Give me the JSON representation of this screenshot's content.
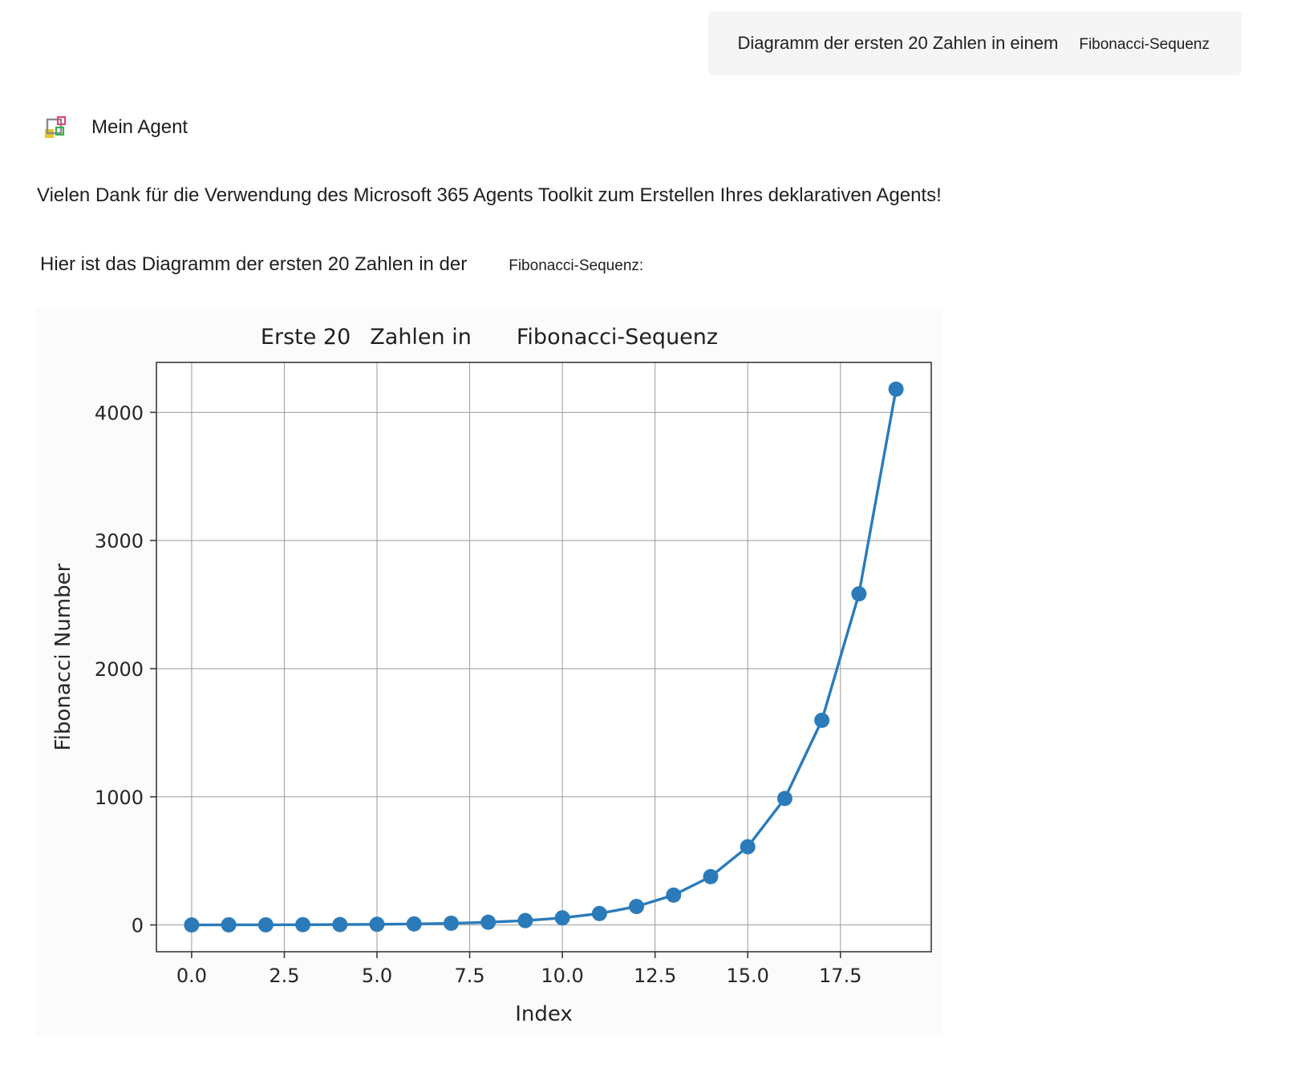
{
  "user_message": {
    "text": "Diagramm der ersten 20 Zahlen in einem",
    "text_secondary": "Fibonacci-Sequenz"
  },
  "agent_header": {
    "name": "Mein Agent",
    "icon": "agent-blocks-icon"
  },
  "agent_message": {
    "thanks": "Vielen Dank für die Verwendung des Microsoft 365 Agents Toolkit zum Erstellen Ihres deklarativen Agents!",
    "intro": "Hier ist das Diagramm der ersten 20 Zahlen in der",
    "intro_secondary": "Fibonacci-Sequenz:"
  },
  "chart_data": {
    "type": "line",
    "title": "Erste 20 Zahlen in Fibonacci-Sequenz",
    "title_parts": [
      "Erste 20",
      "Zahlen in",
      "Fibonacci-Sequenz"
    ],
    "xlabel": "Index",
    "ylabel": "Fibonacci Number",
    "x": [
      0,
      1,
      2,
      3,
      4,
      5,
      6,
      7,
      8,
      9,
      10,
      11,
      12,
      13,
      14,
      15,
      16,
      17,
      18,
      19
    ],
    "y": [
      0,
      1,
      1,
      2,
      3,
      5,
      8,
      13,
      21,
      34,
      55,
      89,
      144,
      233,
      377,
      610,
      987,
      1597,
      2584,
      4181
    ],
    "x_ticks": [
      "0.0",
      "2.5",
      "5.0",
      "7.5",
      "10.0",
      "12.5",
      "15.0",
      "17.5"
    ],
    "y_ticks": [
      0,
      1000,
      2000,
      3000,
      4000
    ],
    "xlim": [
      -0.95,
      19.95
    ],
    "ylim": [
      -209,
      4390
    ],
    "grid": true,
    "legend": "none",
    "marker": "circle",
    "line_color": "#2b7bba",
    "grid_color": "#9b9b9b",
    "spine_color": "#3a3a3a"
  },
  "colors": {
    "page_bg": "#ffffff",
    "bubble_bg": "#f5f5f5",
    "chart_card_bg": "#fbfbfb",
    "text": "#1f1f1f"
  }
}
